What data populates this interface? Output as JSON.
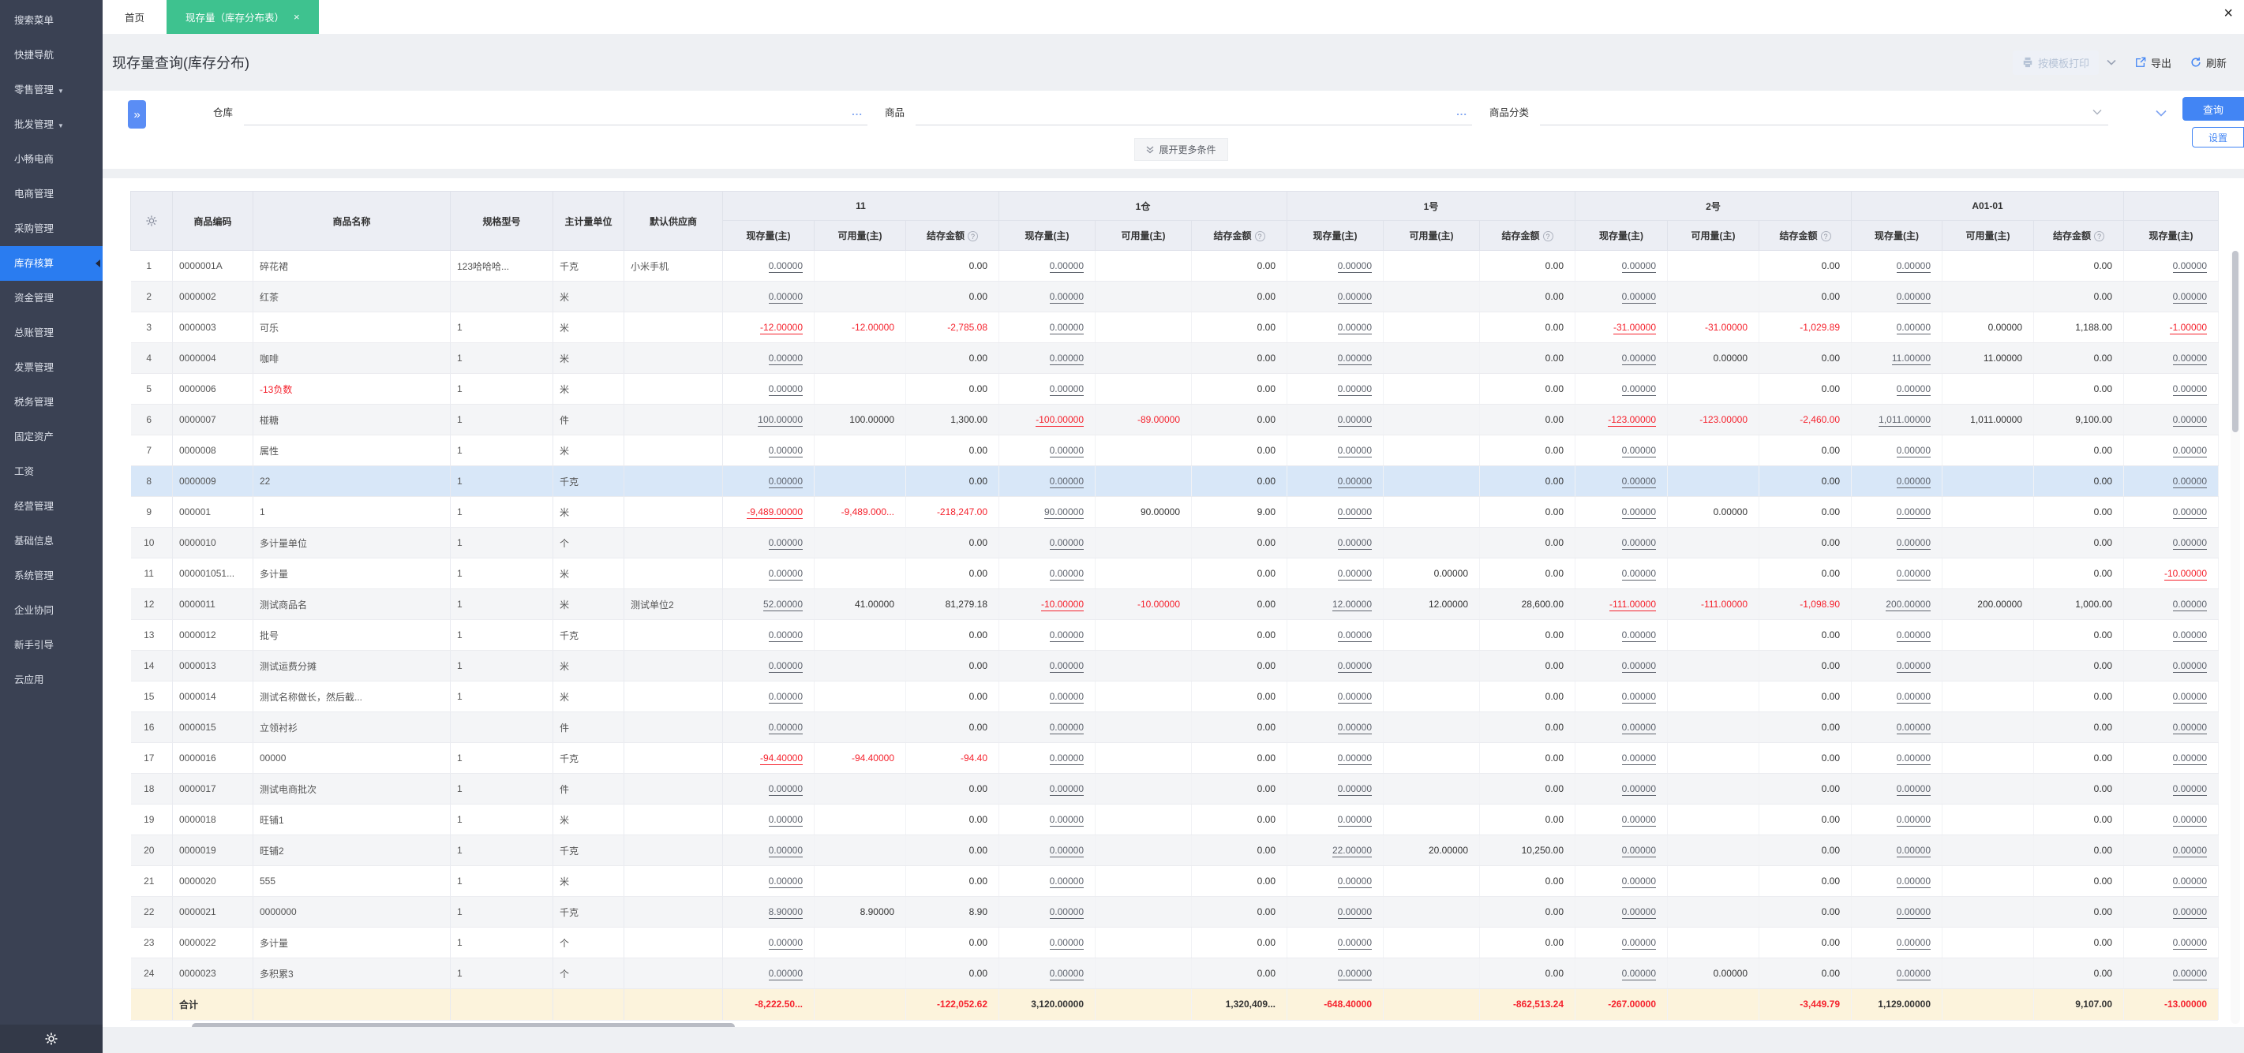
{
  "window": {
    "close_label": "×"
  },
  "colors": {
    "accent_blue": "#4285f4",
    "active_tab_green": "#3ec28f",
    "sidebar_bg": "#3a4153",
    "active_item_blue": "#2a7cf0",
    "negative_red": "#f5222d",
    "total_row_bg": "#fcf3dc"
  },
  "icons": {
    "print": "printer-icon",
    "export": "export-icon",
    "refresh": "refresh-icon",
    "expand_more": "double-chevron-down-icon",
    "collapse_filters": "chevron-down-icon",
    "collapse_panel": "double-chevron-right-icon",
    "field_picker": "ellipsis-icon",
    "field_dropdown": "chevron-down-icon",
    "column_settings": "gear-icon",
    "help": "question-circle-icon",
    "sidebar_footer": "gear-icon",
    "tab_close": "x-icon",
    "window_close": "x-icon"
  },
  "sidebar": {
    "items": [
      {
        "label": "搜索菜单"
      },
      {
        "label": "快捷导航"
      },
      {
        "label": "零售管理",
        "caret": true
      },
      {
        "label": "批发管理",
        "caret": true
      },
      {
        "label": "小畅电商"
      },
      {
        "label": "电商管理"
      },
      {
        "label": "采购管理"
      },
      {
        "label": "库存核算",
        "active": true
      },
      {
        "label": "资金管理"
      },
      {
        "label": "总账管理"
      },
      {
        "label": "发票管理"
      },
      {
        "label": "税务管理"
      },
      {
        "label": "固定资产"
      },
      {
        "label": "工资"
      },
      {
        "label": "经营管理"
      },
      {
        "label": "基础信息"
      },
      {
        "label": "系统管理"
      },
      {
        "label": "企业协同"
      },
      {
        "label": "新手引导"
      },
      {
        "label": "云应用"
      }
    ]
  },
  "tabs": [
    {
      "label": "首页"
    },
    {
      "label": "现存量（库存分布表）",
      "active": true,
      "close": "×"
    }
  ],
  "page": {
    "title": "现存量查询(库存分布)"
  },
  "toolbar": {
    "print": "按模板打印",
    "export": "导出",
    "refresh": "刷新"
  },
  "filters": {
    "fields": [
      {
        "label": "仓库",
        "value": "",
        "trailing": "..."
      },
      {
        "label": "商品",
        "value": "",
        "trailing": "..."
      },
      {
        "label": "商品分类",
        "value": "",
        "trailing": "chevron"
      }
    ],
    "expand_more": "展开更多条件",
    "query": "查询",
    "settings": "设置"
  },
  "table": {
    "fixed_columns": [
      "商品编码",
      "商品名称",
      "规格型号",
      "主计量单位",
      "默认供应商"
    ],
    "sub_columns": [
      "现存量(主)",
      "可用量(主)",
      "结存金额"
    ],
    "help_glyph": "?",
    "warehouses": [
      "11",
      "1仓",
      "1号",
      "2号",
      "A01-01",
      ""
    ],
    "rows": [
      {
        "code": "0000001A",
        "name": "碎花裙",
        "spec": "123哈哈哈...",
        "unit": "千克",
        "supplier": "小米手机",
        "values": [
          "0.00000",
          "",
          "0.00",
          "0.00000",
          "",
          "0.00",
          "0.00000",
          "",
          "0.00",
          "0.00000",
          "",
          "0.00",
          "0.00000",
          "",
          "0.00",
          "0.00000"
        ]
      },
      {
        "code": "0000002",
        "name": "红茶",
        "spec": "",
        "unit": "米",
        "supplier": "",
        "values": [
          "0.00000",
          "",
          "0.00",
          "0.00000",
          "",
          "0.00",
          "0.00000",
          "",
          "0.00",
          "0.00000",
          "",
          "0.00",
          "0.00000",
          "",
          "0.00",
          "0.00000"
        ]
      },
      {
        "code": "0000003",
        "name": "可乐",
        "spec": "1",
        "unit": "米",
        "supplier": "",
        "values": [
          "-12.00000",
          "-12.00000",
          "-2,785.08",
          "0.00000",
          "",
          "0.00",
          "0.00000",
          "",
          "0.00",
          "-31.00000",
          "-31.00000",
          "-1,029.89",
          "0.00000",
          "0.00000",
          "1,188.00",
          "-1.00000"
        ]
      },
      {
        "code": "0000004",
        "name": "咖啡",
        "spec": "1",
        "unit": "米",
        "supplier": "",
        "values": [
          "0.00000",
          "",
          "0.00",
          "0.00000",
          "",
          "0.00",
          "0.00000",
          "",
          "0.00",
          "0.00000",
          "0.00000",
          "0.00",
          "11.00000",
          "11.00000",
          "0.00",
          "0.00000"
        ]
      },
      {
        "code": "0000006",
        "name": "-13负数",
        "name_red": true,
        "spec": "1",
        "unit": "米",
        "supplier": "",
        "values": [
          "0.00000",
          "",
          "0.00",
          "0.00000",
          "",
          "0.00",
          "0.00000",
          "",
          "0.00",
          "0.00000",
          "",
          "0.00",
          "0.00000",
          "",
          "0.00",
          "0.00000"
        ]
      },
      {
        "code": "0000007",
        "name": "椪糖",
        "spec": "1",
        "unit": "件",
        "supplier": "",
        "values": [
          "100.00000",
          "100.00000",
          "1,300.00",
          "-100.00000",
          "-89.00000",
          "0.00",
          "0.00000",
          "",
          "0.00",
          "-123.00000",
          "-123.00000",
          "-2,460.00",
          "1,011.00000",
          "1,011.00000",
          "9,100.00",
          "0.00000"
        ]
      },
      {
        "code": "0000008",
        "name": "属性",
        "spec": "1",
        "unit": "米",
        "supplier": "",
        "values": [
          "0.00000",
          "",
          "0.00",
          "0.00000",
          "",
          "0.00",
          "0.00000",
          "",
          "0.00",
          "0.00000",
          "",
          "0.00",
          "0.00000",
          "",
          "0.00",
          "0.00000"
        ]
      },
      {
        "code": "0000009",
        "name": "22",
        "spec": "1",
        "unit": "千克",
        "supplier": "",
        "highlight": true,
        "values": [
          "0.00000",
          "",
          "0.00",
          "0.00000",
          "",
          "0.00",
          "0.00000",
          "",
          "0.00",
          "0.00000",
          "",
          "0.00",
          "0.00000",
          "",
          "0.00",
          "0.00000"
        ]
      },
      {
        "code": "000001",
        "name": "1",
        "spec": "1",
        "unit": "米",
        "supplier": "",
        "values": [
          "-9,489.00000",
          "-9,489.000...",
          "-218,247.00",
          "90.00000",
          "90.00000",
          "9.00",
          "0.00000",
          "",
          "0.00",
          "0.00000",
          "0.00000",
          "0.00",
          "0.00000",
          "",
          "0.00",
          "0.00000"
        ]
      },
      {
        "code": "0000010",
        "name": "多计量单位",
        "spec": "1",
        "unit": "个",
        "supplier": "",
        "values": [
          "0.00000",
          "",
          "0.00",
          "0.00000",
          "",
          "0.00",
          "0.00000",
          "",
          "0.00",
          "0.00000",
          "",
          "0.00",
          "0.00000",
          "",
          "0.00",
          "0.00000"
        ]
      },
      {
        "code": "000001051...",
        "name": "多计量",
        "spec": "1",
        "unit": "米",
        "supplier": "",
        "values": [
          "0.00000",
          "",
          "0.00",
          "0.00000",
          "",
          "0.00",
          "0.00000",
          "0.00000",
          "0.00",
          "0.00000",
          "",
          "0.00",
          "0.00000",
          "",
          "0.00",
          "-10.00000"
        ]
      },
      {
        "code": "0000011",
        "name": "测试商品名",
        "spec": "1",
        "unit": "米",
        "supplier": "测试单位2",
        "values": [
          "52.00000",
          "41.00000",
          "81,279.18",
          "-10.00000",
          "-10.00000",
          "0.00",
          "12.00000",
          "12.00000",
          "28,600.00",
          "-111.00000",
          "-111.00000",
          "-1,098.90",
          "200.00000",
          "200.00000",
          "1,000.00",
          "0.00000"
        ]
      },
      {
        "code": "0000012",
        "name": "批号",
        "spec": "1",
        "unit": "千克",
        "supplier": "",
        "values": [
          "0.00000",
          "",
          "0.00",
          "0.00000",
          "",
          "0.00",
          "0.00000",
          "",
          "0.00",
          "0.00000",
          "",
          "0.00",
          "0.00000",
          "",
          "0.00",
          "0.00000"
        ]
      },
      {
        "code": "0000013",
        "name": "测试运费分摊",
        "spec": "1",
        "unit": "米",
        "supplier": "",
        "values": [
          "0.00000",
          "",
          "0.00",
          "0.00000",
          "",
          "0.00",
          "0.00000",
          "",
          "0.00",
          "0.00000",
          "",
          "0.00",
          "0.00000",
          "",
          "0.00",
          "0.00000"
        ]
      },
      {
        "code": "0000014",
        "name": "测试名称做长，然后截...",
        "spec": "1",
        "unit": "米",
        "supplier": "",
        "values": [
          "0.00000",
          "",
          "0.00",
          "0.00000",
          "",
          "0.00",
          "0.00000",
          "",
          "0.00",
          "0.00000",
          "",
          "0.00",
          "0.00000",
          "",
          "0.00",
          "0.00000"
        ]
      },
      {
        "code": "0000015",
        "name": "立领衬衫",
        "spec": "",
        "unit": "件",
        "supplier": "",
        "values": [
          "0.00000",
          "",
          "0.00",
          "0.00000",
          "",
          "0.00",
          "0.00000",
          "",
          "0.00",
          "0.00000",
          "",
          "0.00",
          "0.00000",
          "",
          "0.00",
          "0.00000"
        ]
      },
      {
        "code": "0000016",
        "name": "00000",
        "spec": "1",
        "unit": "千克",
        "supplier": "",
        "values": [
          "-94.40000",
          "-94.40000",
          "-94.40",
          "0.00000",
          "",
          "0.00",
          "0.00000",
          "",
          "0.00",
          "0.00000",
          "",
          "0.00",
          "0.00000",
          "",
          "0.00",
          "0.00000"
        ]
      },
      {
        "code": "0000017",
        "name": "测试电商批次",
        "spec": "1",
        "unit": "件",
        "supplier": "",
        "values": [
          "0.00000",
          "",
          "0.00",
          "0.00000",
          "",
          "0.00",
          "0.00000",
          "",
          "0.00",
          "0.00000",
          "",
          "0.00",
          "0.00000",
          "",
          "0.00",
          "0.00000"
        ]
      },
      {
        "code": "0000018",
        "name": "旺铺1",
        "spec": "1",
        "unit": "米",
        "supplier": "",
        "values": [
          "0.00000",
          "",
          "0.00",
          "0.00000",
          "",
          "0.00",
          "0.00000",
          "",
          "0.00",
          "0.00000",
          "",
          "0.00",
          "0.00000",
          "",
          "0.00",
          "0.00000"
        ]
      },
      {
        "code": "0000019",
        "name": "旺铺2",
        "spec": "1",
        "unit": "千克",
        "supplier": "",
        "values": [
          "0.00000",
          "",
          "0.00",
          "0.00000",
          "",
          "0.00",
          "22.00000",
          "20.00000",
          "10,250.00",
          "0.00000",
          "",
          "0.00",
          "0.00000",
          "",
          "0.00",
          "0.00000"
        ]
      },
      {
        "code": "0000020",
        "name": "555",
        "spec": "1",
        "unit": "米",
        "supplier": "",
        "values": [
          "0.00000",
          "",
          "0.00",
          "0.00000",
          "",
          "0.00",
          "0.00000",
          "",
          "0.00",
          "0.00000",
          "",
          "0.00",
          "0.00000",
          "",
          "0.00",
          "0.00000"
        ]
      },
      {
        "code": "0000021",
        "name": "0000000",
        "spec": "1",
        "unit": "千克",
        "supplier": "",
        "values": [
          "8.90000",
          "8.90000",
          "8.90",
          "0.00000",
          "",
          "0.00",
          "0.00000",
          "",
          "0.00",
          "0.00000",
          "",
          "0.00",
          "0.00000",
          "",
          "0.00",
          "0.00000"
        ]
      },
      {
        "code": "0000022",
        "name": "多计量",
        "spec": "1",
        "unit": "个",
        "supplier": "",
        "values": [
          "0.00000",
          "",
          "0.00",
          "0.00000",
          "",
          "0.00",
          "0.00000",
          "",
          "0.00",
          "0.00000",
          "",
          "0.00",
          "0.00000",
          "",
          "0.00",
          "0.00000"
        ]
      },
      {
        "code": "0000023",
        "name": "多积累3",
        "spec": "1",
        "unit": "个",
        "supplier": "",
        "values": [
          "0.00000",
          "",
          "0.00",
          "0.00000",
          "",
          "0.00",
          "0.00000",
          "",
          "0.00",
          "0.00000",
          "0.00000",
          "0.00",
          "0.00000",
          "",
          "0.00",
          "0.00000"
        ]
      }
    ],
    "total": {
      "label": "合计",
      "values": [
        "-8,222.50...",
        "",
        "-122,052.62",
        "3,120.00000",
        "",
        "1,320,409...",
        "-648.40000",
        "",
        "-862,513.24",
        "-267.00000",
        "",
        "-3,449.79",
        "1,129.00000",
        "",
        "9,107.00",
        "-13.00000"
      ]
    }
  }
}
